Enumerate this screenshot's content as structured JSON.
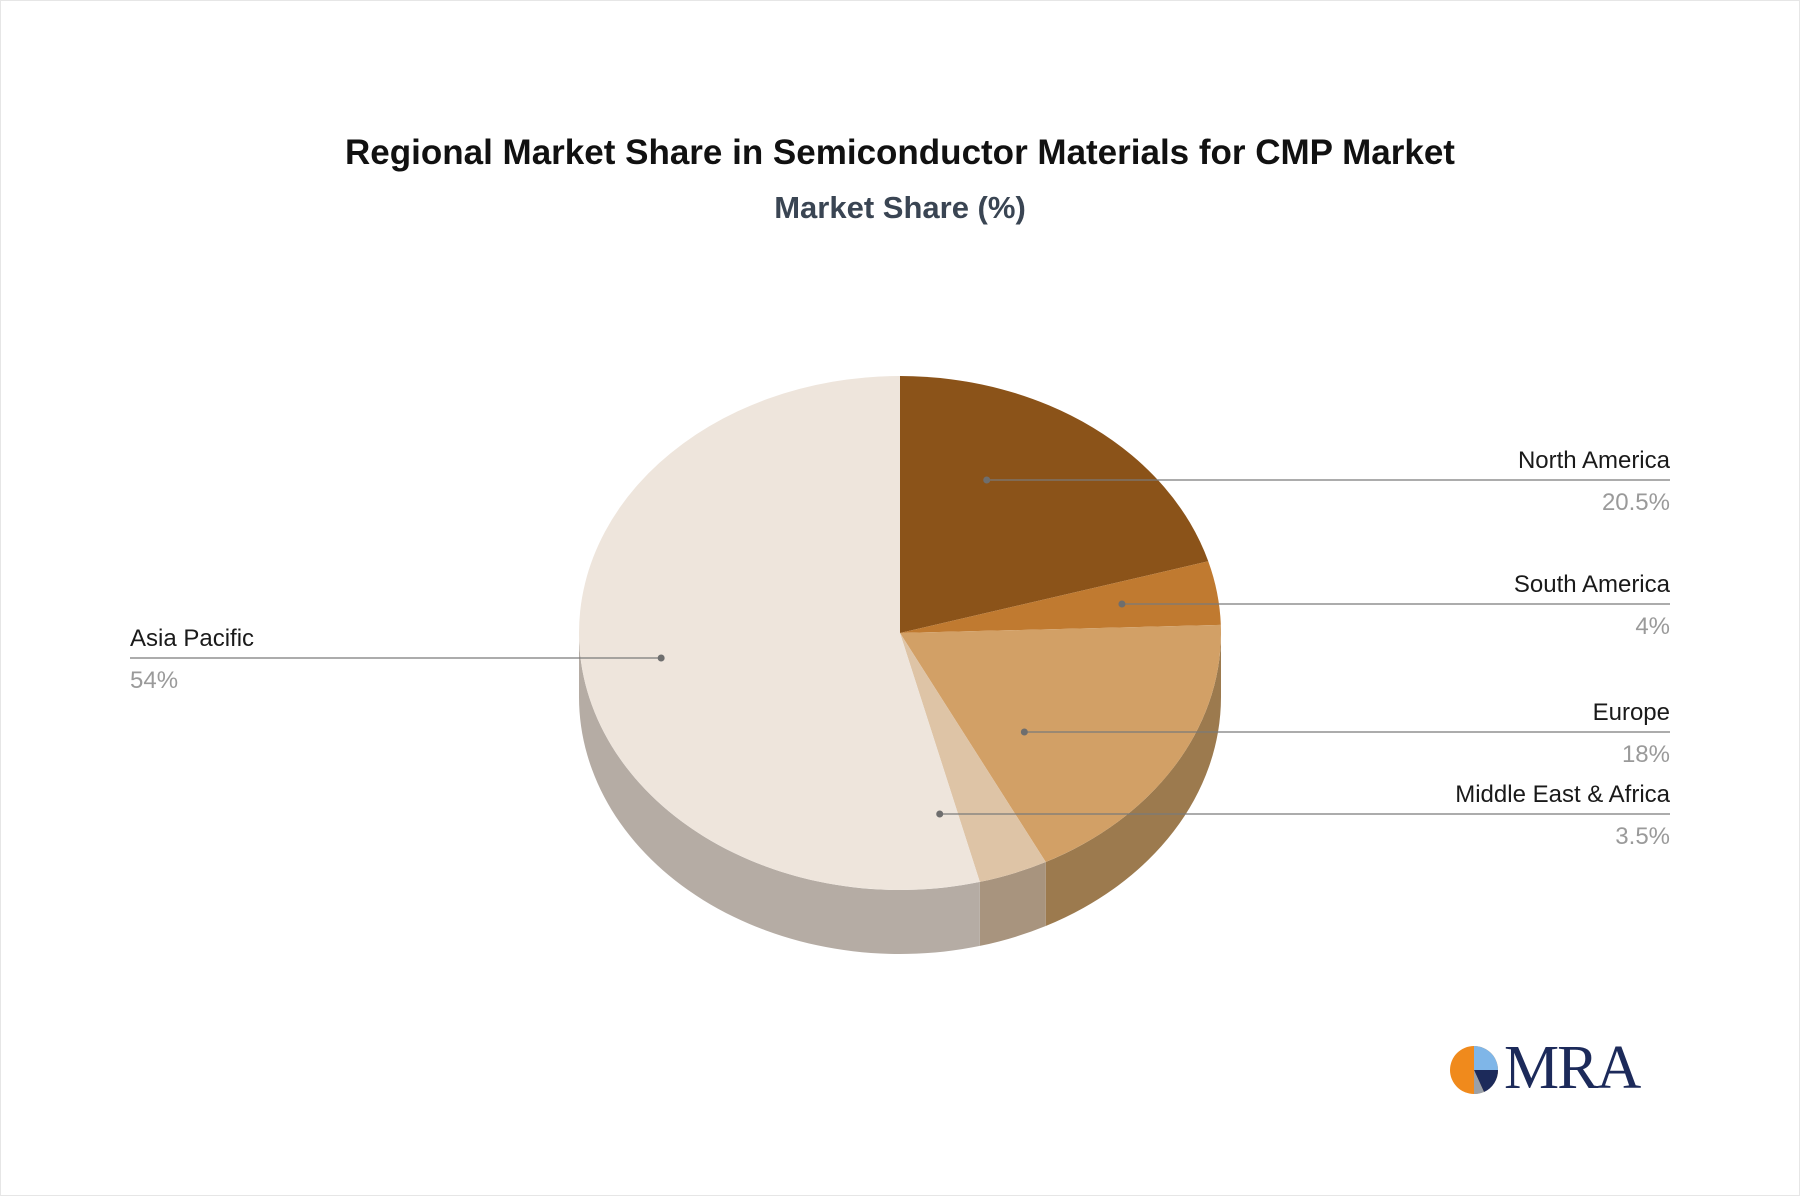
{
  "chart_data": {
    "type": "pie",
    "title": "Regional Market Share in Semiconductor Materials for CMP Market",
    "subtitle": "Market Share (%)",
    "categories": [
      "North America",
      "South America",
      "Europe",
      "Middle East & Africa",
      "Asia Pacific"
    ],
    "values": [
      20.5,
      4,
      18,
      3.5,
      54
    ],
    "value_labels": [
      "20.5%",
      "4%",
      "18%",
      "3.5%",
      "54%"
    ],
    "colors": [
      "#8b5319",
      "#c07a30",
      "#d2a066",
      "#dec4a6",
      "#eee5dc"
    ],
    "side_colors": [
      "#6e4414",
      "#9a622a",
      "#9c7a4e",
      "#a8947e",
      "#b5aca4"
    ],
    "legend": "none",
    "three_d": true
  },
  "logo": {
    "text": "MRA",
    "icon": "pie-logo-icon"
  }
}
